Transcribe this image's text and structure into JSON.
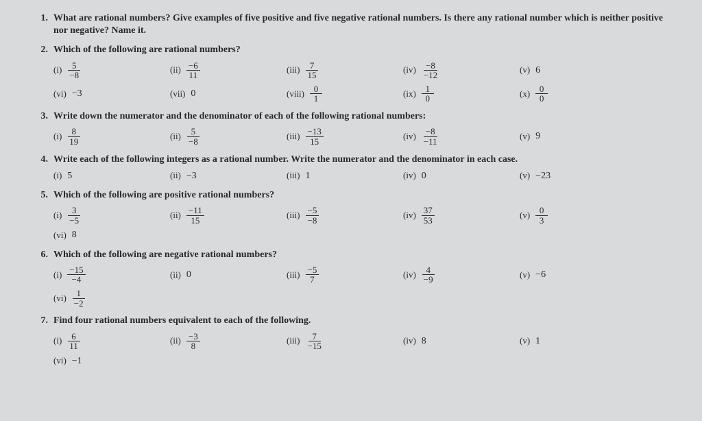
{
  "background_color": "#d8dadb",
  "text_color": "#2a2a2a",
  "font_family": "Georgia, Times New Roman, serif",
  "questions": [
    {
      "num": "1.",
      "text": "What are rational numbers? Give examples of five positive and five negative rational numbers. Is there any rational number which is neither positive nor negative? Name it."
    },
    {
      "num": "2.",
      "text": "Which of the following are rational numbers?",
      "options": [
        {
          "label": "(i)",
          "type": "frac",
          "n": "5",
          "d": "−8"
        },
        {
          "label": "(ii)",
          "type": "frac",
          "n": "−6",
          "d": "11"
        },
        {
          "label": "(iii)",
          "type": "frac",
          "n": "7",
          "d": "15"
        },
        {
          "label": "(iv)",
          "type": "frac",
          "n": "−8",
          "d": "−12"
        },
        {
          "label": "(v)",
          "type": "plain",
          "v": "6"
        },
        {
          "label": "(vi)",
          "type": "plain",
          "v": "−3"
        },
        {
          "label": "(vii)",
          "type": "plain",
          "v": "0"
        },
        {
          "label": "(viii)",
          "type": "frac",
          "n": "0",
          "d": "1"
        },
        {
          "label": "(ix)",
          "type": "frac",
          "n": "1",
          "d": "0"
        },
        {
          "label": "(x)",
          "type": "frac",
          "n": "0",
          "d": "0"
        }
      ]
    },
    {
      "num": "3.",
      "text": "Write down the numerator and the denominator of each of the following rational numbers:",
      "options": [
        {
          "label": "(i)",
          "type": "frac",
          "n": "8",
          "d": "19"
        },
        {
          "label": "(ii)",
          "type": "frac",
          "n": "5",
          "d": "−8"
        },
        {
          "label": "(iii)",
          "type": "frac",
          "n": "−13",
          "d": "15"
        },
        {
          "label": "(iv)",
          "type": "frac",
          "n": "−8",
          "d": "−11"
        },
        {
          "label": "(v)",
          "type": "plain",
          "v": "9"
        }
      ]
    },
    {
      "num": "4.",
      "text": "Write each of the following integers as a rational number. Write the numerator and the denominator in each case.",
      "options": [
        {
          "label": "(i)",
          "type": "plain",
          "v": "5"
        },
        {
          "label": "(ii)",
          "type": "plain",
          "v": "−3"
        },
        {
          "label": "(iii)",
          "type": "plain",
          "v": "1"
        },
        {
          "label": "(iv)",
          "type": "plain",
          "v": "0"
        },
        {
          "label": "(v)",
          "type": "plain",
          "v": "−23"
        }
      ]
    },
    {
      "num": "5.",
      "text": "Which of the following are positive rational numbers?",
      "options": [
        {
          "label": "(i)",
          "type": "frac",
          "n": "3",
          "d": "−5"
        },
        {
          "label": "(ii)",
          "type": "frac",
          "n": "−11",
          "d": "15"
        },
        {
          "label": "(iii)",
          "type": "frac",
          "n": "−5",
          "d": "−8"
        },
        {
          "label": "(iv)",
          "type": "frac",
          "n": "37",
          "d": "53"
        },
        {
          "label": "(v)",
          "type": "frac",
          "n": "0",
          "d": "3"
        },
        {
          "label": "(vi)",
          "type": "plain",
          "v": "8"
        }
      ]
    },
    {
      "num": "6.",
      "text": "Which of the following are negative rational numbers?",
      "options": [
        {
          "label": "(i)",
          "type": "frac",
          "n": "−15",
          "d": "−4"
        },
        {
          "label": "(ii)",
          "type": "plain",
          "v": "0"
        },
        {
          "label": "(iii)",
          "type": "frac",
          "n": "−5",
          "d": "7"
        },
        {
          "label": "(iv)",
          "type": "frac",
          "n": "4",
          "d": "−9"
        },
        {
          "label": "(v)",
          "type": "plain",
          "v": "−6"
        },
        {
          "label": "(vi)",
          "type": "frac",
          "n": "1",
          "d": "−2"
        }
      ]
    },
    {
      "num": "7.",
      "text": "Find four rational numbers equivalent to each of the following.",
      "options": [
        {
          "label": "(i)",
          "type": "frac",
          "n": "6",
          "d": "11"
        },
        {
          "label": "(ii)",
          "type": "frac",
          "n": "−3",
          "d": "8"
        },
        {
          "label": "(iii)",
          "type": "frac",
          "n": "7",
          "d": "−15"
        },
        {
          "label": "(iv)",
          "type": "plain",
          "v": "8"
        },
        {
          "label": "(v)",
          "type": "plain",
          "v": "1"
        },
        {
          "label": "(vi)",
          "type": "plain",
          "v": "−1"
        }
      ]
    }
  ]
}
